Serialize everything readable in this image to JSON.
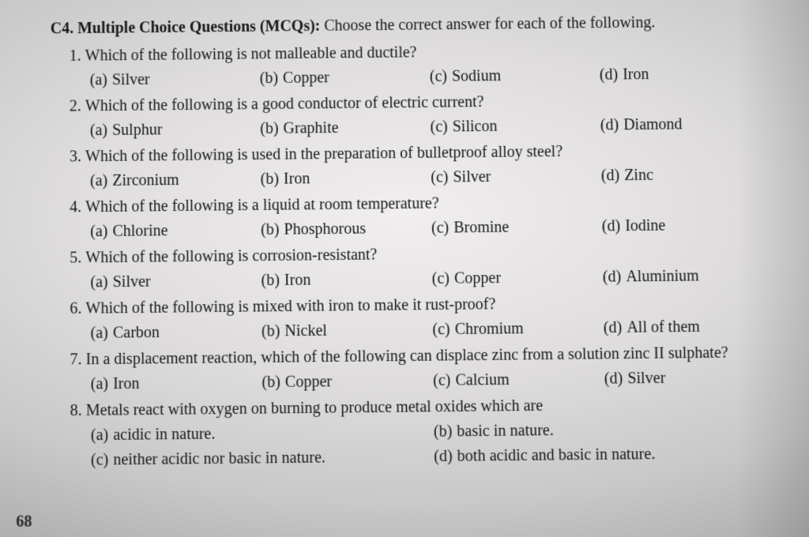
{
  "heading": {
    "sectionId": "C4.",
    "titleBold": "Multiple Choice Questions (MCQs):",
    "titleRest": " Choose the correct answer for each of the following."
  },
  "pageNumber": "68",
  "style": {
    "fontFamily": "Georgia, 'Times New Roman', serif",
    "textColor": "#1a1a1a",
    "bgCenter": "#f0eeee",
    "bgEdge": "#7a7a7a",
    "bodyFontSizePt": 15,
    "headingFontSizePt": 15,
    "lineHeight": 1.55
  },
  "questions": [
    {
      "text": "Which of the following is not malleable and ductile?",
      "layout": "four",
      "options": [
        {
          "key": "(a)",
          "label": "Silver"
        },
        {
          "key": "(b)",
          "label": "Copper"
        },
        {
          "key": "(c)",
          "label": "Sodium"
        },
        {
          "key": "(d)",
          "label": "Iron"
        }
      ]
    },
    {
      "text": "Which of the following is a good conductor of electric current?",
      "layout": "four",
      "options": [
        {
          "key": "(a)",
          "label": "Sulphur"
        },
        {
          "key": "(b)",
          "label": "Graphite"
        },
        {
          "key": "(c)",
          "label": "Silicon"
        },
        {
          "key": "(d)",
          "label": "Diamond"
        }
      ]
    },
    {
      "text": "Which of the following is used in the preparation of bulletproof alloy steel?",
      "layout": "four",
      "options": [
        {
          "key": "(a)",
          "label": "Zirconium"
        },
        {
          "key": "(b)",
          "label": "Iron"
        },
        {
          "key": "(c)",
          "label": "Silver"
        },
        {
          "key": "(d)",
          "label": "Zinc"
        }
      ]
    },
    {
      "text": "Which of the following is a liquid at room temperature?",
      "layout": "four",
      "options": [
        {
          "key": "(a)",
          "label": "Chlorine"
        },
        {
          "key": "(b)",
          "label": "Phosphorous"
        },
        {
          "key": "(c)",
          "label": "Bromine"
        },
        {
          "key": "(d)",
          "label": "Iodine"
        }
      ]
    },
    {
      "text": "Which of the following is corrosion-resistant?",
      "layout": "four",
      "options": [
        {
          "key": "(a)",
          "label": "Silver"
        },
        {
          "key": "(b)",
          "label": "Iron"
        },
        {
          "key": "(c)",
          "label": "Copper"
        },
        {
          "key": "(d)",
          "label": "Aluminium"
        }
      ]
    },
    {
      "text": "Which of the following is mixed with iron to make it rust-proof?",
      "layout": "four",
      "options": [
        {
          "key": "(a)",
          "label": "Carbon"
        },
        {
          "key": "(b)",
          "label": "Nickel"
        },
        {
          "key": "(c)",
          "label": "Chromium"
        },
        {
          "key": "(d)",
          "label": "All of them"
        }
      ]
    },
    {
      "text": "In a displacement reaction, which of the following can displace zinc from a solution zinc II sulphate?",
      "layout": "four",
      "options": [
        {
          "key": "(a)",
          "label": "Iron"
        },
        {
          "key": "(b)",
          "label": "Copper"
        },
        {
          "key": "(c)",
          "label": "Calcium"
        },
        {
          "key": "(d)",
          "label": "Silver"
        }
      ]
    },
    {
      "text": "Metals react with oxygen on burning to produce metal oxides which are",
      "layout": "two",
      "options": [
        {
          "key": "(a)",
          "label": "acidic in nature."
        },
        {
          "key": "(b)",
          "label": "basic in nature."
        },
        {
          "key": "(c)",
          "label": "neither acidic nor basic in nature."
        },
        {
          "key": "(d)",
          "label": "both acidic and basic in nature."
        }
      ]
    }
  ]
}
